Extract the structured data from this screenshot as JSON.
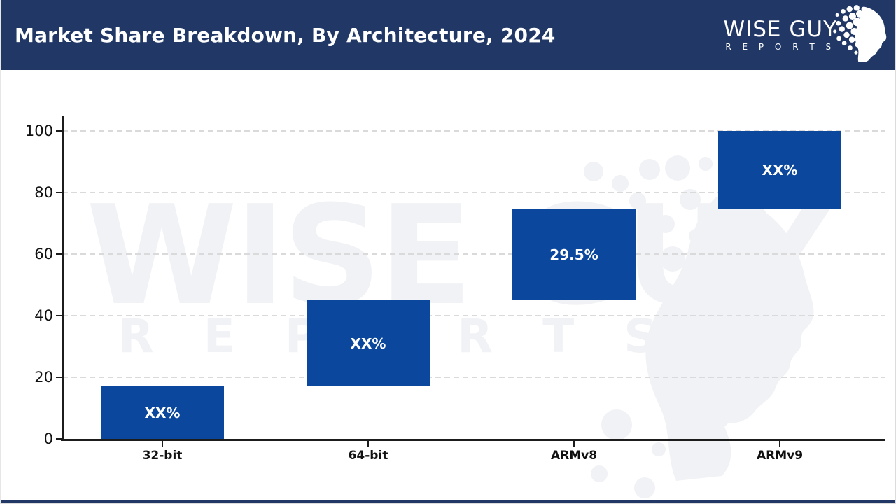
{
  "header": {
    "title": "Market Share Breakdown, By Architecture, 2024",
    "logo_line1": "WISE GUY",
    "logo_line2": "R E P O R T S"
  },
  "watermark": {
    "line1": "WISE GUY",
    "line2": "R E P O R T S"
  },
  "colors": {
    "header_bg": "#213866",
    "footer_bg": "#213866",
    "bar": "#0b479c",
    "bar_label_text": "#ffffff",
    "gridline": "#dadada",
    "axis": "#1c1c1c",
    "tick_text": "#111111",
    "watermark": "#f1f2f5"
  },
  "chart_data": {
    "type": "bar",
    "subtype": "floating-waterfall",
    "title": "Market Share Breakdown, By Architecture, 2024",
    "categories": [
      "32-bit",
      "64-bit",
      "ARMv8",
      "ARMv9"
    ],
    "series": [
      {
        "name": "Market share (%)",
        "segments": [
          {
            "category": "32-bit",
            "start": 0,
            "end": 17,
            "value": 17,
            "label": "XX%"
          },
          {
            "category": "64-bit",
            "start": 17,
            "end": 45,
            "value": 28,
            "label": "XX%"
          },
          {
            "category": "ARMv8",
            "start": 45,
            "end": 74.5,
            "value": 29.5,
            "label": "29.5%"
          },
          {
            "category": "ARMv9",
            "start": 74.5,
            "end": 100,
            "value": 25.5,
            "label": "XX%"
          }
        ]
      }
    ],
    "xlabel": "",
    "ylabel": "",
    "ylim": [
      0,
      105
    ],
    "yticks": [
      0,
      20,
      40,
      60,
      80,
      100
    ],
    "grid": "horizontal-dashed",
    "legend": "none",
    "bar_color": "#0b479c"
  }
}
